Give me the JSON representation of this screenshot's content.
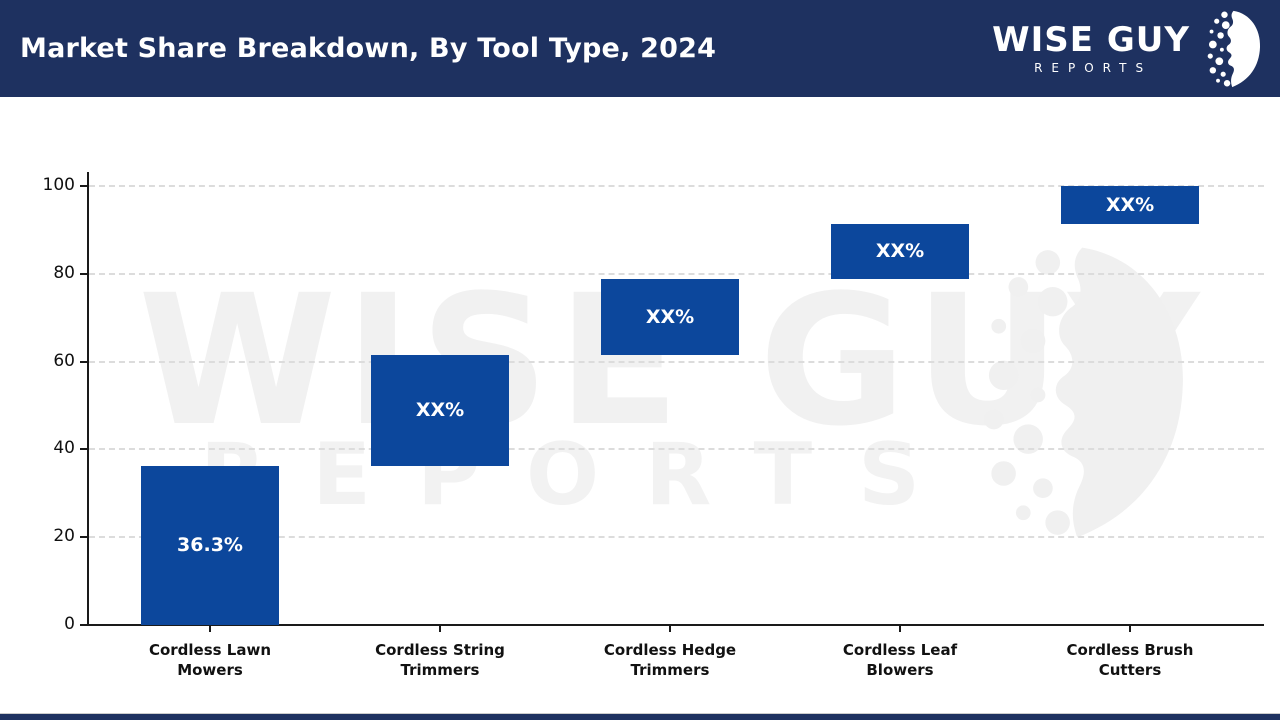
{
  "header": {
    "title": "Market Share Breakdown, By Tool Type, 2024",
    "brand_line1": "WISE GUY",
    "brand_line2": "REPORTS",
    "bg_color": "#1e3160"
  },
  "watermark": {
    "line1": "WISE GUY",
    "line2": "REPORTS"
  },
  "chart_data": {
    "type": "bar",
    "subtype": "waterfall",
    "title": "Market Share Breakdown, By Tool Type, 2024",
    "categories": [
      "Cordless Lawn Mowers",
      "Cordless String Trimmers",
      "Cordless Hedge Trimmers",
      "Cordless Leaf Blowers",
      "Cordless Brush Cutters"
    ],
    "segments": [
      {
        "category": "Cordless Lawn Mowers",
        "start": 0,
        "end": 36.3,
        "label": "36.3%"
      },
      {
        "category": "Cordless String Trimmers",
        "start": 36.3,
        "end": 61.6,
        "label": "XX%"
      },
      {
        "category": "Cordless Hedge Trimmers",
        "start": 61.6,
        "end": 78.9,
        "label": "XX%"
      },
      {
        "category": "Cordless Leaf Blowers",
        "start": 78.9,
        "end": 91.4,
        "label": "XX%"
      },
      {
        "category": "Cordless Brush Cutters",
        "start": 91.4,
        "end": 100,
        "label": "XX%"
      }
    ],
    "ylim": [
      0,
      100
    ],
    "yticks": [
      0,
      20,
      40,
      60,
      80,
      100
    ],
    "grid": "horizontal-dashed",
    "legend": "none",
    "bar_color": "#0c479c",
    "bar_label_color": "#ffffff",
    "axis_color": "#1a1a1a"
  }
}
